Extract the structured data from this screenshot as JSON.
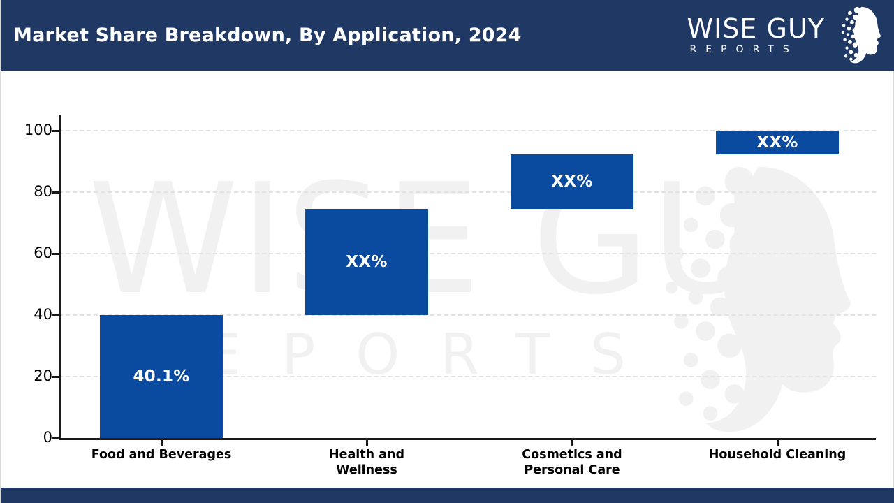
{
  "header": {
    "title": "Market Share Breakdown, By Application, 2024",
    "brand": {
      "line1": "WISE GUY",
      "line2": "REPORTS"
    }
  },
  "watermark": {
    "line1": "WISE GU",
    "line2": "REPORTS"
  },
  "colors": {
    "header_bg": "#203864",
    "footer_bg": "#203864",
    "bar": "#0b4b9f",
    "grid": "#e2e2e2",
    "axis": "#1a1a1a",
    "watermark": "#f1f1f1",
    "bar_label": "#ffffff"
  },
  "chart_data": {
    "type": "bar",
    "subtype": "waterfall",
    "title": "Market Share Breakdown, By Application, 2024",
    "xlabel": "",
    "ylabel": "",
    "ylim": [
      0,
      100
    ],
    "yticks": [
      0,
      20,
      40,
      60,
      80,
      100
    ],
    "grid": "horizontal-dashed",
    "legend": "none",
    "categories": [
      "Food and Beverages",
      "Health and Wellness",
      "Cosmetics and Personal Care",
      "Household Cleaning"
    ],
    "category_label_lines": [
      [
        "Food and Beverages"
      ],
      [
        "Health and",
        "Wellness"
      ],
      [
        "Cosmetics and",
        "Personal Care"
      ],
      [
        "Household Cleaning"
      ]
    ],
    "segments": [
      {
        "category": "Food and Beverages",
        "start": 0,
        "end": 40.1,
        "label": "40.1%"
      },
      {
        "category": "Health and Wellness",
        "start": 40.1,
        "end": 74.5,
        "label": "XX%"
      },
      {
        "category": "Cosmetics and Personal Care",
        "start": 74.5,
        "end": 92.2,
        "label": "XX%"
      },
      {
        "category": "Household Cleaning",
        "start": 92.2,
        "end": 100,
        "label": "XX%"
      }
    ]
  }
}
